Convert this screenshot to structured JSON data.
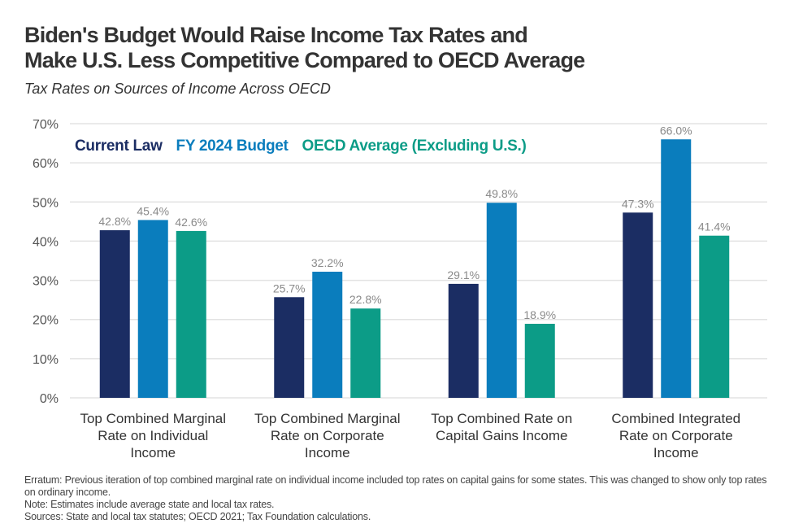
{
  "title_lines": [
    "Biden's Budget Would Raise Income Tax Rates and",
    "Make U.S. Less Competitive Compared to OECD Average"
  ],
  "subtitle": "Tax Rates on Sources of Income Across OECD",
  "notes": [
    "Erratum: Previous iteration of top combined marginal rate on individual income included top rates on capital gains for some states. This was changed to show only top rates on ordinary income.",
    "Note: Estimates include average state and local tax rates.",
    "Sources: State and local tax statutes; OECD 2021; Tax Foundation calculations."
  ],
  "chart_data": {
    "type": "bar",
    "title": "Biden's Budget Would Raise Income Tax Rates and Make U.S. Less Competitive Compared to OECD Average",
    "subtitle": "Tax Rates on Sources of Income Across OECD",
    "xlabel": "",
    "ylabel": "",
    "ylim": [
      0,
      70
    ],
    "yticks": [
      0,
      10,
      20,
      30,
      40,
      50,
      60,
      70
    ],
    "ytick_labels": [
      "0%",
      "10%",
      "20%",
      "30%",
      "40%",
      "50%",
      "60%",
      "70%"
    ],
    "grid": true,
    "legend_position": "top-left",
    "categories": [
      [
        "Top Combined Marginal",
        "Rate on Individual",
        "Income"
      ],
      [
        "Top Combined Marginal",
        "Rate on Corporate",
        "Income"
      ],
      [
        "Top Combined Rate on",
        "Capital Gains Income"
      ],
      [
        "Combined Integrated",
        "Rate on Corporate",
        "Income"
      ]
    ],
    "series": [
      {
        "name": "Current Law",
        "color": "#1b2d63",
        "values": [
          42.8,
          25.7,
          29.1,
          47.3
        ],
        "labels": [
          "42.8%",
          "25.7%",
          "29.1%",
          "47.3%"
        ]
      },
      {
        "name": "FY 2024 Budget",
        "color": "#0a7dbd",
        "values": [
          45.4,
          32.2,
          49.8,
          66.0
        ],
        "labels": [
          "45.4%",
          "32.2%",
          "49.8%",
          "66.0%"
        ]
      },
      {
        "name": "OECD Average (Excluding U.S.)",
        "color": "#0c9c87",
        "values": [
          42.6,
          22.8,
          18.9,
          41.4
        ],
        "labels": [
          "42.6%",
          "22.8%",
          "18.9%",
          "41.4%"
        ]
      }
    ],
    "colors": {
      "gridline": "#e3e3e3",
      "tick_label": "#555555",
      "data_label": "#8a8a8a",
      "category_label": "#333333"
    }
  }
}
